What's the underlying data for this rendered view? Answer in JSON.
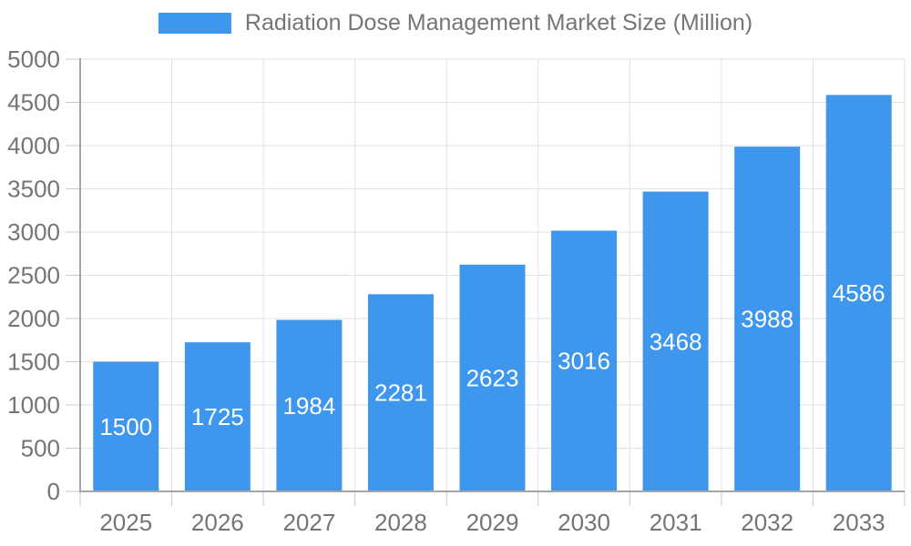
{
  "chart_data": {
    "type": "bar",
    "title": "Radiation Dose Management Market Size (Million)",
    "categories": [
      "2025",
      "2026",
      "2027",
      "2028",
      "2029",
      "2030",
      "2031",
      "2032",
      "2033"
    ],
    "values": [
      1500,
      1725,
      1984,
      2281,
      2623,
      3016,
      3468,
      3988,
      4586
    ],
    "xlabel": "",
    "ylabel": "",
    "ylim": [
      0,
      5000
    ],
    "ytick_step": 500,
    "ytick_labels": [
      "0",
      "500",
      "1000",
      "1500",
      "2000",
      "2500",
      "3000",
      "3500",
      "4000",
      "4500",
      "5000"
    ],
    "grid": true,
    "legend_position": "top",
    "bar_value_labels_inside": true,
    "colors": {
      "bar": "#3E97EC",
      "bar_label": "#FFFFFF",
      "axis_text": "#757575",
      "axis_line": "#A5A5A5",
      "tick_line": "#C8C8C8",
      "grid_line": "#E2E2E2",
      "background": "#FFFFFF"
    }
  }
}
